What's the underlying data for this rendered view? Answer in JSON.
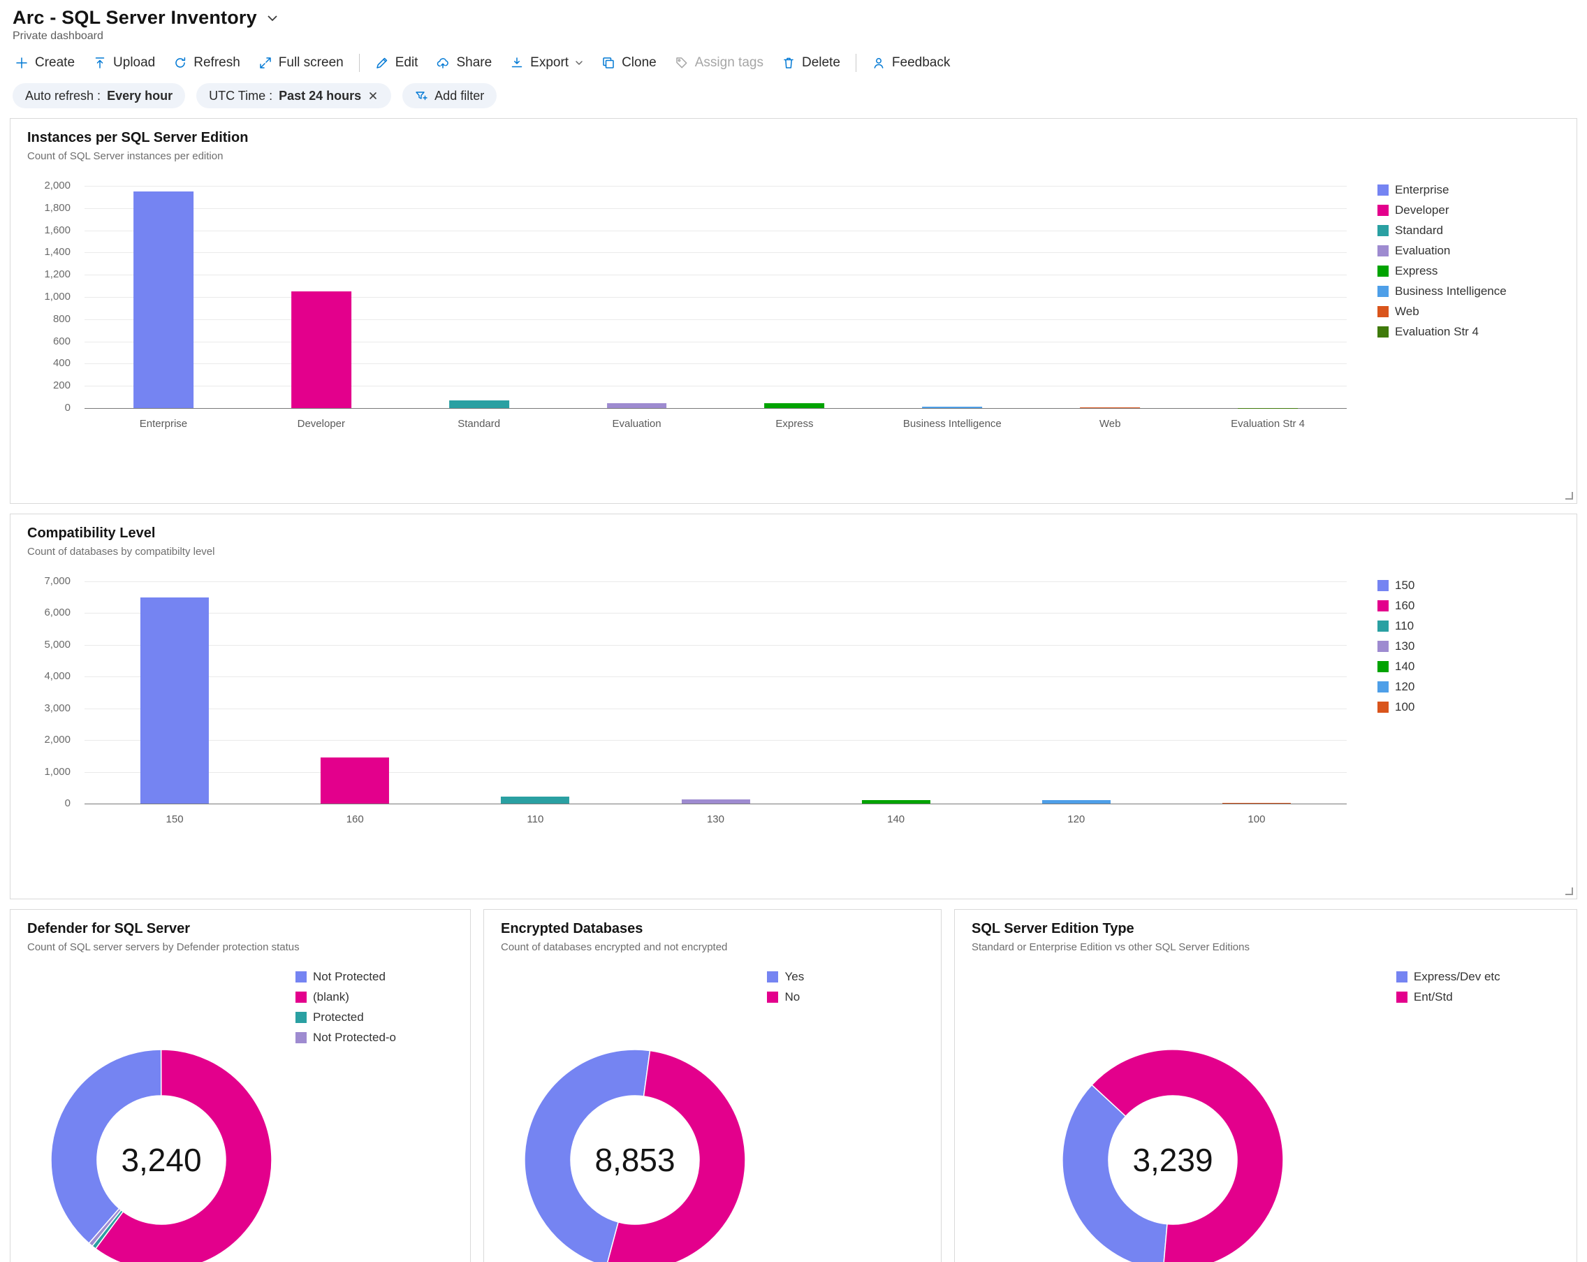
{
  "header": {
    "title": "Arc - SQL Server Inventory",
    "subtitle": "Private dashboard"
  },
  "toolbar": {
    "items": [
      {
        "label": "Create"
      },
      {
        "label": "Upload"
      },
      {
        "label": "Refresh"
      },
      {
        "label": "Full screen"
      },
      {
        "label": "Edit"
      },
      {
        "label": "Share"
      },
      {
        "label": "Export"
      },
      {
        "label": "Clone"
      },
      {
        "label": "Assign tags",
        "disabled": true
      },
      {
        "label": "Delete"
      },
      {
        "label": "Feedback"
      }
    ]
  },
  "filters": {
    "auto_refresh": {
      "prefix": "Auto refresh :",
      "value": "Every hour"
    },
    "utc_time": {
      "prefix": "UTC Time :",
      "value": "Past 24 hours"
    },
    "add_filter_label": "Add filter"
  },
  "colors": {
    "accent": "#0078D4",
    "series_blue": "#7584F2",
    "series_magenta": "#E3008C"
  },
  "chart_data": [
    {
      "type": "bar",
      "title": "Instances per SQL Server Edition",
      "subtitle": "Count of SQL Server instances per edition",
      "categories": [
        "Enterprise",
        "Developer",
        "Standard",
        "Evaluation",
        "Express",
        "Business Intelligence",
        "Web",
        "Evaluation Str 4"
      ],
      "values": [
        1950,
        1050,
        70,
        45,
        45,
        10,
        5,
        3
      ],
      "colors": [
        "#7584F2",
        "#E3008C",
        "#2AA0A2",
        "#9E8BD0",
        "#00A300",
        "#4E9FE8",
        "#D9551C",
        "#3F7A0B"
      ],
      "ylim": [
        0,
        2000
      ],
      "ytick_step": 200,
      "grid": true,
      "legend_position": "right",
      "legend": [
        "Enterprise",
        "Developer",
        "Standard",
        "Evaluation",
        "Express",
        "Business Intelligence",
        "Web",
        "Evaluation Str 4"
      ]
    },
    {
      "type": "bar",
      "title": "Compatibility Level",
      "subtitle": "Count of databases by compatibilty level",
      "categories": [
        "150",
        "160",
        "110",
        "130",
        "140",
        "120",
        "100"
      ],
      "values": [
        6500,
        1450,
        210,
        130,
        120,
        110,
        30
      ],
      "colors": [
        "#7584F2",
        "#E3008C",
        "#2AA0A2",
        "#9E8BD0",
        "#00A300",
        "#4E9FE8",
        "#D9551C"
      ],
      "ylim": [
        0,
        7000
      ],
      "ytick_step": 1000,
      "grid": true,
      "legend_position": "right",
      "legend": [
        "150",
        "160",
        "110",
        "130",
        "140",
        "120",
        "100"
      ]
    },
    {
      "type": "donut",
      "title": "Defender for SQL Server",
      "subtitle": "Count of SQL server servers by Defender protection status",
      "center_label": "3,240",
      "start_angle": 221,
      "legend_position": "right",
      "segments": [
        {
          "label": "Not Protected",
          "value": 1250,
          "color": "#7584F2"
        },
        {
          "label": "(blank)",
          "value": 1950,
          "color": "#E3008C"
        },
        {
          "label": "Protected",
          "value": 20,
          "color": "#2AA0A2"
        },
        {
          "label": "Not Protected-o",
          "value": 20,
          "color": "#9E8BD0"
        }
      ]
    },
    {
      "type": "donut",
      "title": "Encrypted Databases",
      "subtitle": "Count of databases encrypted and not encrypted",
      "center_label": "8,853",
      "start_angle": 195,
      "legend_position": "right",
      "segments": [
        {
          "label": "Yes",
          "value": 4250,
          "color": "#7584F2"
        },
        {
          "label": "No",
          "value": 4603,
          "color": "#E3008C"
        }
      ]
    },
    {
      "type": "donut",
      "title": "SQL Server Edition Type",
      "subtitle": "Standard or Enterprise Edition vs other SQL Server Editions",
      "center_label": "3,239",
      "start_angle": 185,
      "legend_position": "right",
      "segments": [
        {
          "label": "Express/Dev etc",
          "value": 1150,
          "color": "#7584F2"
        },
        {
          "label": "Ent/Std",
          "value": 2089,
          "color": "#E3008C"
        }
      ]
    }
  ]
}
